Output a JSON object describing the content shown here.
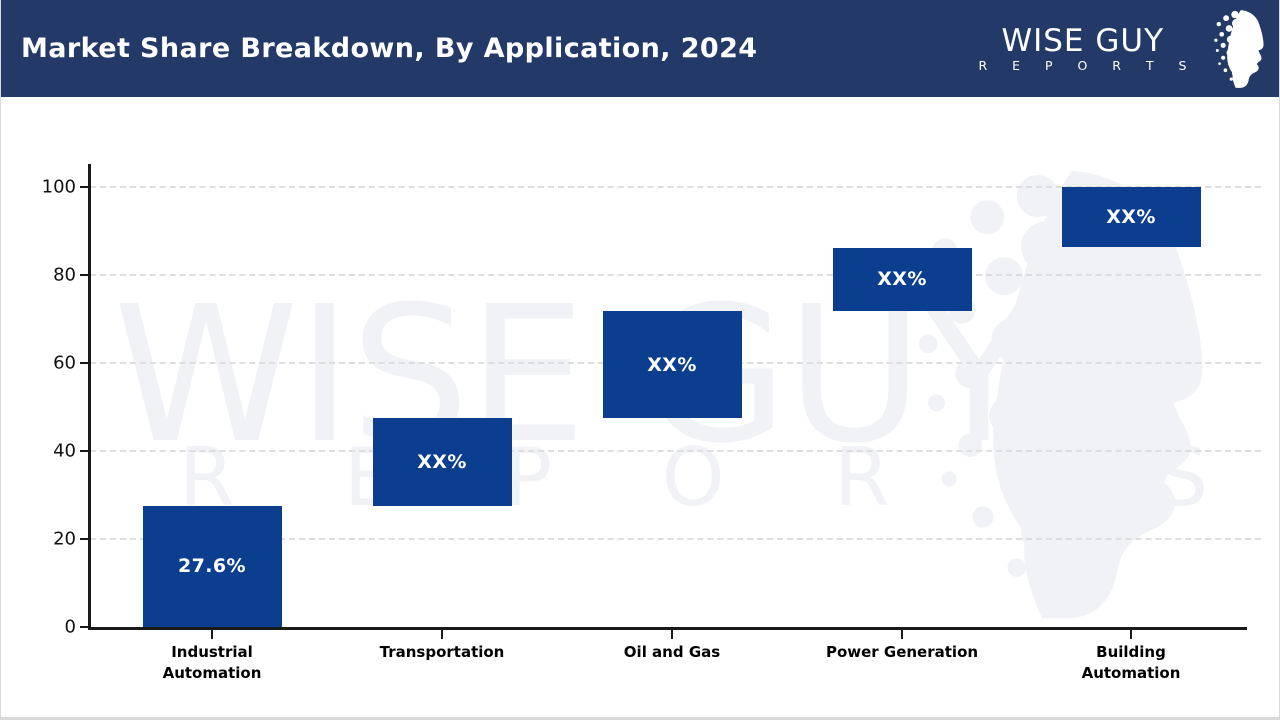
{
  "header": {
    "title": "Market Share Breakdown, By Application, 2024",
    "logo": {
      "line1": "WISE GUY",
      "line2": "R E P O R T S",
      "icon": "dotted-head-profile"
    }
  },
  "watermark": {
    "line1": "WISE GUY",
    "line2": "R E P O R T S",
    "icon": "dotted-head-profile"
  },
  "colors": {
    "header_bg": "#233A69",
    "bar": "#0C3E90",
    "bar_label": "#FFFFFF",
    "grid": "#DEDEDE",
    "axis": "#1A1A1A",
    "watermark": "#F1F2F5",
    "border": "#D9D9D9"
  },
  "chart_data": {
    "type": "bar",
    "subtype": "waterfall",
    "title": "Market Share Breakdown, By Application, 2024",
    "xlabel": "",
    "ylabel": "",
    "ylim": [
      0,
      100
    ],
    "yticks": [
      0,
      20,
      40,
      60,
      80,
      100
    ],
    "grid": "horizontal-dashed",
    "legend": "none",
    "categories": [
      "Industrial Automation",
      "Transportation",
      "Oil and Gas",
      "Power Generation",
      "Building Automation"
    ],
    "bars": [
      {
        "category": "Industrial Automation",
        "label_lines": [
          "Industrial",
          "Automation"
        ],
        "start": 0,
        "end": 27.6,
        "value_label": "27.6%"
      },
      {
        "category": "Transportation",
        "label_lines": [
          "Transportation"
        ],
        "start": 27.6,
        "end": 47.5,
        "value_label": "XX%"
      },
      {
        "category": "Oil and Gas",
        "label_lines": [
          "Oil and Gas"
        ],
        "start": 47.5,
        "end": 71.8,
        "value_label": "XX%"
      },
      {
        "category": "Power Generation",
        "label_lines": [
          "Power Generation"
        ],
        "start": 71.9,
        "end": 86.2,
        "value_label": "XX%"
      },
      {
        "category": "Building Automation",
        "label_lines": [
          "Building",
          "Automation"
        ],
        "start": 86.4,
        "end": 100,
        "value_label": "XX%"
      }
    ]
  }
}
